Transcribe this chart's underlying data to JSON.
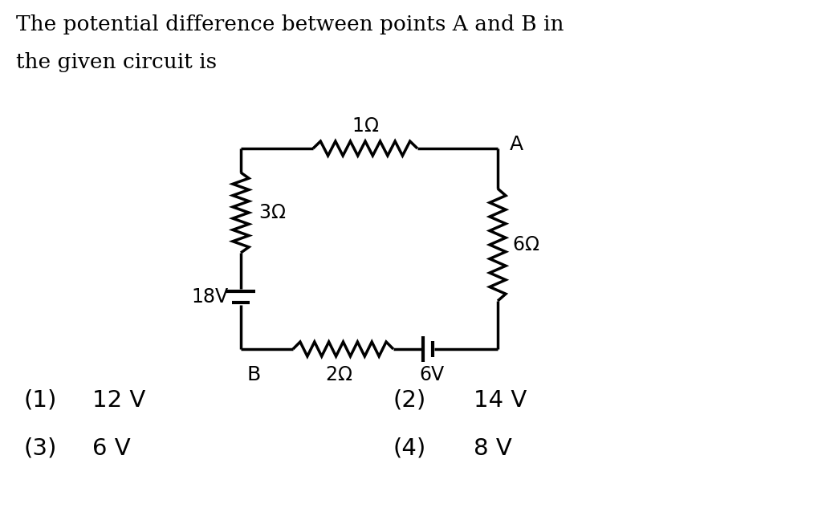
{
  "title_line1": "The potential difference between points A and B in",
  "title_line2": "the given circuit is",
  "background_color": "#ffffff",
  "line_color": "#000000",
  "options": [
    {
      "num": "(1)",
      "val": "12 V"
    },
    {
      "num": "(2)",
      "val": "14 V"
    },
    {
      "num": "(3)",
      "val": "6 V"
    },
    {
      "num": "(4)",
      "val": "8 V"
    }
  ]
}
